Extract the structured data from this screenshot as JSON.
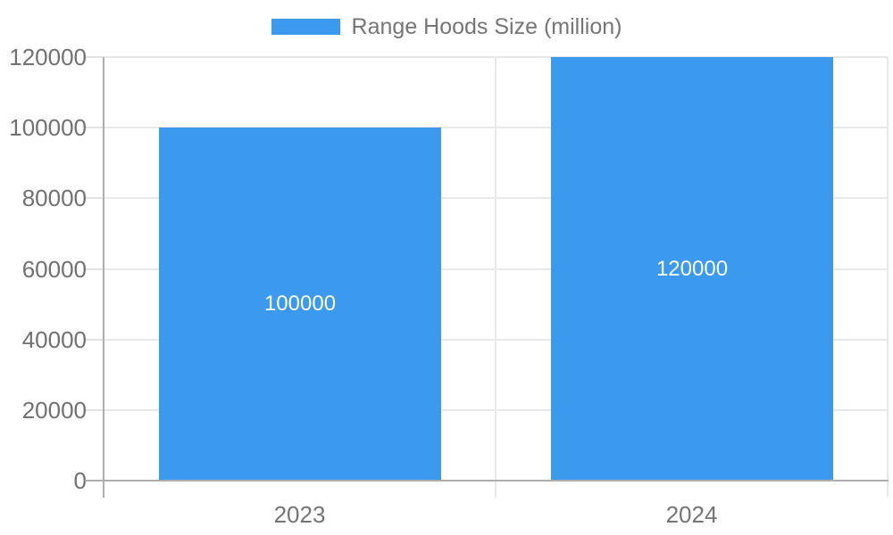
{
  "legend": {
    "label": "Range Hoods Size (million)"
  },
  "colors": {
    "bar": "#3b99ee",
    "bar_label_text": "#ffffff",
    "axis_text": "#757575",
    "gridline": "#e8e8e8",
    "axis_line": "#aeaeae",
    "background": "#ffffff"
  },
  "chart_data": {
    "type": "bar",
    "title": "Range Hoods Size (million)",
    "categories": [
      "2023",
      "2024"
    ],
    "series": [
      {
        "name": "Range Hoods Size (million)",
        "values": [
          100000,
          120000
        ]
      }
    ],
    "bar_labels": [
      "100000",
      "120000"
    ],
    "label_position": "inside-center",
    "xlabel": "",
    "ylabel": "",
    "ylim": [
      0,
      120000
    ],
    "yticks": [
      0,
      20000,
      40000,
      60000,
      80000,
      100000,
      120000
    ],
    "grid": "horizontal",
    "legend_position": "top-center"
  }
}
